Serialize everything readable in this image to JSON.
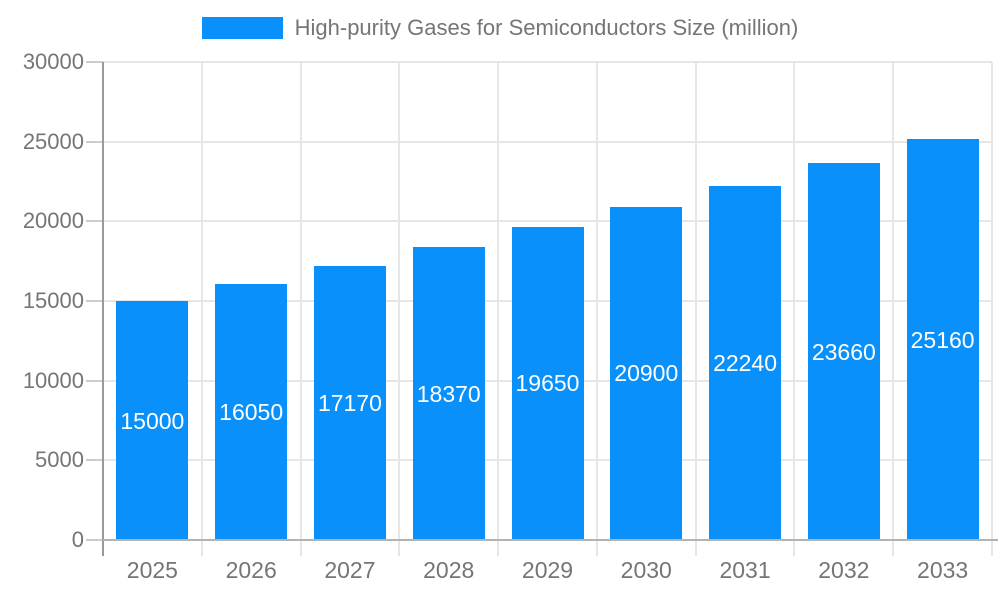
{
  "legend": {
    "label": "High-purity Gases for Semiconductors Size (million)"
  },
  "chart_data": {
    "type": "bar",
    "title": "High-purity Gases for Semiconductors Size (million)",
    "categories": [
      "2025",
      "2026",
      "2027",
      "2028",
      "2029",
      "2030",
      "2031",
      "2032",
      "2033"
    ],
    "values": [
      15000,
      16050,
      17170,
      18370,
      19650,
      20900,
      22240,
      23660,
      25160
    ],
    "xlabel": "",
    "ylabel": "",
    "ylim": [
      0,
      30000
    ],
    "ytick_step": 5000,
    "yticks": [
      0,
      5000,
      10000,
      15000,
      20000,
      25000,
      30000
    ],
    "grid": true,
    "legend_position": "top",
    "value_labels": "inside-center",
    "colors": {
      "bar": "#0990fa",
      "axis_text": "#757575",
      "grid_line": "#e6e6e6",
      "tick_line": "#cccccc",
      "y_axis_line": "#999999",
      "x_axis_line": "#b3b3b3",
      "bar_label": "#ffffff",
      "background": "#ffffff"
    }
  }
}
